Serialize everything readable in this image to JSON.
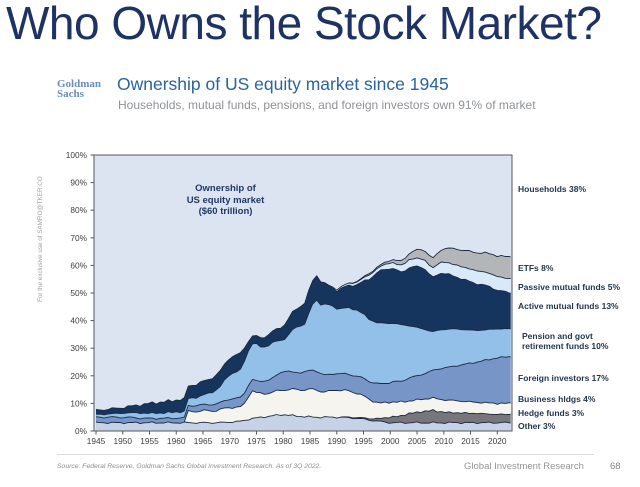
{
  "slide": {
    "title": "Who Owns the Stock Market?",
    "header": {
      "logo_line1": "Goldman",
      "logo_line2": "Sachs",
      "title": "Ownership of US equity market since 1945",
      "subtitle": "Households, mutual funds, pensions, and foreign investors own 91% of market"
    },
    "watermark": "For the exclusive use of SAMRO@TKER.CO",
    "footer": {
      "source": "Source: Federal Reserve, Goldman Sachs Global Investment Research. As of 3Q 2022.",
      "right": "Global Investment Research",
      "page": "68"
    }
  },
  "chart_data": {
    "type": "area",
    "stacked": true,
    "unit": "percent of US equity market",
    "title_annotation": "Ownership of\nUS equity market\n($60 trillion)",
    "ylim": [
      0,
      100
    ],
    "grid": false,
    "legend_position": "right-outside",
    "y_ticks": [
      "0%",
      "10%",
      "20%",
      "30%",
      "40%",
      "50%",
      "60%",
      "70%",
      "80%",
      "90%",
      "100%"
    ],
    "x_ticks": [
      1945,
      1950,
      1955,
      1960,
      1965,
      1970,
      1975,
      1980,
      1985,
      1990,
      1995,
      2000,
      2005,
      2010,
      2015,
      2020
    ],
    "x": [
      1945,
      1948,
      1950,
      1952,
      1955,
      1958,
      1960,
      1961.5,
      1962,
      1964,
      1966,
      1968,
      1970,
      1972,
      1973,
      1974,
      1975,
      1976,
      1978,
      1980,
      1982,
      1984,
      1986,
      1987,
      1988,
      1990,
      1992,
      1994,
      1996,
      1998,
      2000,
      2001,
      2002,
      2004,
      2006,
      2008,
      2009,
      2010,
      2012,
      2014,
      2016,
      2018,
      2020,
      2022.5
    ],
    "series": [
      {
        "name": "Other",
        "label": "Other 3%",
        "current_pct": 3,
        "color": "#c6d3e7",
        "values": [
          3,
          3,
          3,
          3,
          3,
          3,
          3,
          3,
          3,
          3,
          3,
          3,
          3.2,
          3.5,
          4,
          4.5,
          4.7,
          5,
          5.5,
          6,
          5.5,
          5.2,
          5,
          5,
          5,
          5,
          4.8,
          4.6,
          4,
          3.5,
          3,
          3,
          3,
          3,
          3,
          3,
          3,
          3,
          3,
          3,
          3,
          3,
          3,
          3
        ]
      },
      {
        "name": "Hedge funds",
        "label": "Hedge funds 3%",
        "current_pct": 3,
        "color": "#75777b",
        "values": [
          0,
          0,
          0,
          0,
          0,
          0,
          0,
          0,
          0,
          0,
          0,
          0,
          0,
          0,
          0,
          0,
          0,
          0,
          0,
          0,
          0,
          0,
          0,
          0,
          0,
          0,
          0.2,
          0.3,
          0.5,
          1,
          2,
          2.2,
          2.5,
          3.5,
          4,
          4.5,
          4,
          3.8,
          3.6,
          3.5,
          3.4,
          3.2,
          3,
          3
        ]
      },
      {
        "name": "Business hldgs",
        "label": "Business hldgs 4%",
        "current_pct": 4,
        "color": "#f5f4ef",
        "values": [
          0,
          0,
          0,
          0,
          0,
          0,
          0,
          0,
          4,
          4.2,
          4.3,
          4.5,
          5.5,
          5,
          6.5,
          10.5,
          9,
          8.5,
          8.5,
          9,
          9.5,
          9.8,
          10,
          9.5,
          9,
          10,
          9.5,
          8.8,
          7,
          5.5,
          5.5,
          5.3,
          5,
          4.5,
          4.5,
          4.5,
          4.5,
          4.5,
          4.4,
          4.2,
          4,
          4,
          4,
          4
        ]
      },
      {
        "name": "Foreign investors",
        "label": "Foreign investors 17%",
        "current_pct": 17,
        "color": "#7795c6",
        "values": [
          2,
          2,
          2,
          1.8,
          1.5,
          1.6,
          1.7,
          1.7,
          2,
          2.2,
          2.2,
          2.5,
          3,
          3.5,
          4,
          4,
          4.2,
          4.5,
          5,
          7,
          6,
          6.5,
          7,
          6.5,
          6,
          6,
          6,
          6.2,
          6.5,
          7,
          7,
          7.5,
          7.5,
          8.5,
          9,
          10,
          11,
          11.5,
          12.5,
          13.5,
          14.5,
          15.5,
          16.5,
          17
        ]
      },
      {
        "name": "Pension and govt retirement funds",
        "label": "Pension and govt retirement funds 10%",
        "current_pct": 10,
        "color": "#92c0e9",
        "values": [
          1,
          1.2,
          1.5,
          1.8,
          1.9,
          2,
          2.2,
          2.3,
          2.5,
          3,
          4,
          5.5,
          9,
          10,
          12,
          13,
          13.5,
          12,
          13,
          11,
          16,
          17.5,
          26,
          25,
          26,
          23.5,
          24,
          24,
          22.5,
          22,
          21.5,
          21,
          20.5,
          18.5,
          16.5,
          14,
          14,
          14,
          13.5,
          12.5,
          11.5,
          11,
          10.5,
          10
        ]
      },
      {
        "name": "Active mutual funds",
        "label": "Active mutual funds 13%",
        "current_pct": 13,
        "color": "#16355e",
        "values": [
          1.5,
          1.8,
          2,
          2.5,
          3.6,
          4,
          4.3,
          4.5,
          4.5,
          4.8,
          5,
          5.5,
          6.1,
          6,
          4.5,
          2.5,
          2.8,
          3.5,
          4,
          5,
          6.5,
          7.5,
          9,
          8.5,
          7,
          6.5,
          8,
          9.3,
          14.5,
          19,
          20,
          19.5,
          19,
          21.5,
          22.5,
          19.5,
          20.5,
          20.5,
          19,
          18,
          17,
          16,
          14,
          13
        ]
      },
      {
        "name": "Passive mutual funds",
        "label": "Passive mutual funds 5%",
        "current_pct": 5,
        "color": "#d8eafa",
        "values": [
          0,
          0,
          0,
          0,
          0,
          0,
          0,
          0,
          0,
          0,
          0,
          0,
          0,
          0,
          0,
          0,
          0,
          0,
          0,
          0,
          0,
          0,
          0,
          0,
          0,
          0.5,
          0.8,
          1,
          1.5,
          1.5,
          2,
          2.2,
          2.5,
          3,
          3,
          3.5,
          3.8,
          4,
          4.3,
          4.5,
          4.7,
          4.8,
          5,
          5
        ]
      },
      {
        "name": "ETFs",
        "label": "ETFs 8%",
        "current_pct": 8,
        "color": "#b3b6b9",
        "values": [
          0,
          0,
          0,
          0,
          0,
          0,
          0,
          0,
          0,
          0,
          0,
          0,
          0,
          0,
          0,
          0,
          0,
          0,
          0,
          0,
          0,
          0,
          0,
          0,
          0,
          0,
          0,
          0.2,
          0.5,
          0.5,
          1,
          1.2,
          1.5,
          2.5,
          3.5,
          3.5,
          4,
          5,
          5.7,
          6.2,
          6.5,
          7,
          7.5,
          8
        ]
      },
      {
        "name": "Households",
        "label": "Households 38%",
        "current_pct": 38,
        "color": "#dce4f1",
        "remainder": true,
        "values": "remainder to 100%"
      }
    ],
    "style": {
      "boundary_stroke": "#1b2a42",
      "frame_stroke": "#55565a",
      "tick_label_color": "#3c3d40"
    }
  }
}
